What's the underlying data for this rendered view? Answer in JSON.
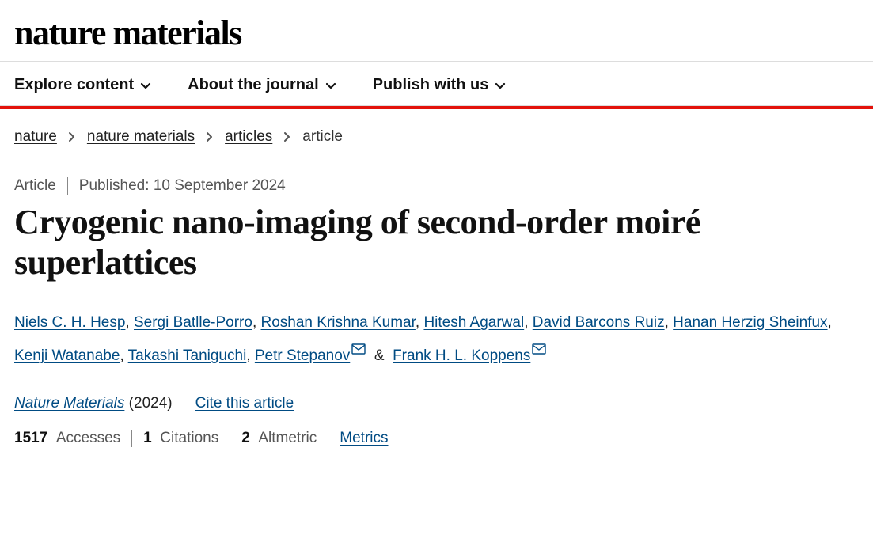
{
  "brand": "nature materials",
  "nav": {
    "items": [
      "Explore content",
      "About the journal",
      "Publish with us"
    ]
  },
  "breadcrumbs": {
    "links": [
      "nature",
      "nature materials",
      "articles"
    ],
    "current": "article"
  },
  "meta": {
    "type": "Article",
    "published_label": "Published:",
    "published_date": "10 September 2024"
  },
  "title": "Cryogenic nano-imaging of second-order moiré superlattices",
  "authors": [
    {
      "name": "Niels C. H. Hesp",
      "mail": false
    },
    {
      "name": "Sergi Batlle-Porro",
      "mail": false
    },
    {
      "name": "Roshan Krishna Kumar",
      "mail": false
    },
    {
      "name": "Hitesh Agarwal",
      "mail": false
    },
    {
      "name": "David Barcons Ruiz",
      "mail": false
    },
    {
      "name": "Hanan Herzig Sheinfux",
      "mail": false
    },
    {
      "name": "Kenji Watanabe",
      "mail": false
    },
    {
      "name": "Takashi Taniguchi",
      "mail": false
    },
    {
      "name": "Petr Stepanov",
      "mail": true
    },
    {
      "name": "Frank H. L. Koppens",
      "mail": true
    }
  ],
  "journal": {
    "name": "Nature Materials",
    "year": "(2024)",
    "cite": "Cite this article"
  },
  "metrics": {
    "accesses": {
      "value": "1517",
      "label": "Accesses"
    },
    "citations": {
      "value": "1",
      "label": "Citations"
    },
    "altmetric": {
      "value": "2",
      "label": "Altmetric"
    },
    "link": "Metrics"
  },
  "colors": {
    "accent": "#e3120b",
    "link": "#004b83"
  }
}
